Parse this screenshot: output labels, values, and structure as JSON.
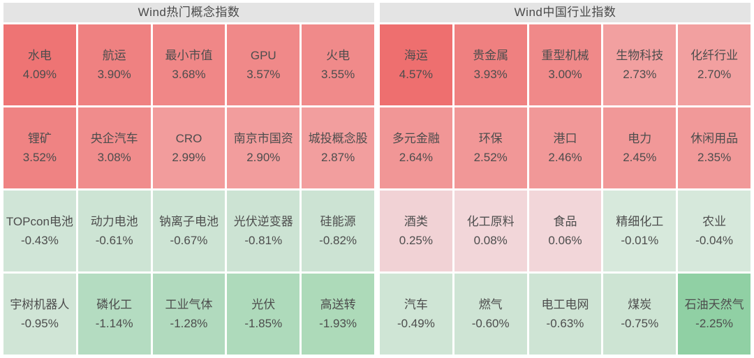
{
  "colors": {
    "header_bg": "#e4e4e4",
    "header_text": "#4a4a4a",
    "cell_text": "#4d4d4d",
    "positive_strong": "#ee6f6f",
    "positive_weak": "#f2d6d9",
    "negative_weak": "#d7e9dc",
    "negative_strong": "#90d0a4",
    "page_bg": "#ffffff"
  },
  "chart_data": [
    {
      "type": "heatmap",
      "title": "Wind热门概念指数",
      "columns": 5,
      "rows": 4,
      "value_unit": "%",
      "cells": [
        {
          "label": "水电",
          "change": "4.09%",
          "value": 4.09,
          "bg": "#ee7474"
        },
        {
          "label": "航运",
          "change": "3.90%",
          "value": 3.9,
          "bg": "#ef8181"
        },
        {
          "label": "最小市值",
          "change": "3.68%",
          "value": 3.68,
          "bg": "#f08787"
        },
        {
          "label": "GPU",
          "change": "3.57%",
          "value": 3.57,
          "bg": "#f08989"
        },
        {
          "label": "火电",
          "change": "3.55%",
          "value": 3.55,
          "bg": "#f08a8a"
        },
        {
          "label": "锂矿",
          "change": "3.52%",
          "value": 3.52,
          "bg": "#ef8383"
        },
        {
          "label": "央企汽车",
          "change": "3.08%",
          "value": 3.08,
          "bg": "#f08c8c"
        },
        {
          "label": "CRO",
          "change": "2.99%",
          "value": 2.99,
          "bg": "#f29c9c"
        },
        {
          "label": "南京市国资",
          "change": "2.90%",
          "value": 2.9,
          "bg": "#f29d9d"
        },
        {
          "label": "城投概念股",
          "change": "2.87%",
          "value": 2.87,
          "bg": "#f29e9e"
        },
        {
          "label": "TOPcon电池",
          "change": "-0.43%",
          "value": -0.43,
          "bg": "#d0e5d7"
        },
        {
          "label": "动力电池",
          "change": "-0.61%",
          "value": -0.61,
          "bg": "#cde4d4"
        },
        {
          "label": "钠离子电池",
          "change": "-0.67%",
          "value": -0.67,
          "bg": "#cde4d4"
        },
        {
          "label": "光伏逆变器",
          "change": "-0.81%",
          "value": -0.81,
          "bg": "#cce3d3"
        },
        {
          "label": "硅能源",
          "change": "-0.82%",
          "value": -0.82,
          "bg": "#cce3d3"
        },
        {
          "label": "宇树机器人",
          "change": "-0.95%",
          "value": -0.95,
          "bg": "#d0e5d6"
        },
        {
          "label": "磷化工",
          "change": "-1.14%",
          "value": -1.14,
          "bg": "#b4dcc1"
        },
        {
          "label": "工业气体",
          "change": "-1.28%",
          "value": -1.28,
          "bg": "#b1dabe"
        },
        {
          "label": "光伏",
          "change": "-1.85%",
          "value": -1.85,
          "bg": "#aedabb"
        },
        {
          "label": "高送转",
          "change": "-1.93%",
          "value": -1.93,
          "bg": "#addab9"
        }
      ]
    },
    {
      "type": "heatmap",
      "title": "Wind中国行业指数",
      "columns": 5,
      "rows": 4,
      "value_unit": "%",
      "cells": [
        {
          "label": "海运",
          "change": "4.57%",
          "value": 4.57,
          "bg": "#ee6f6f"
        },
        {
          "label": "贵金属",
          "change": "3.93%",
          "value": 3.93,
          "bg": "#ef8080"
        },
        {
          "label": "重型机械",
          "change": "3.00%",
          "value": 3.0,
          "bg": "#f08989"
        },
        {
          "label": "生物科技",
          "change": "2.73%",
          "value": 2.73,
          "bg": "#f2a0a0"
        },
        {
          "label": "化纤行业",
          "change": "2.70%",
          "value": 2.7,
          "bg": "#f2a0a0"
        },
        {
          "label": "多元金融",
          "change": "2.64%",
          "value": 2.64,
          "bg": "#f19696"
        },
        {
          "label": "环保",
          "change": "2.52%",
          "value": 2.52,
          "bg": "#f19797"
        },
        {
          "label": "港口",
          "change": "2.46%",
          "value": 2.46,
          "bg": "#f19898"
        },
        {
          "label": "电力",
          "change": "2.45%",
          "value": 2.45,
          "bg": "#f19898"
        },
        {
          "label": "休闲用品",
          "change": "2.35%",
          "value": 2.35,
          "bg": "#f19999"
        },
        {
          "label": "酒类",
          "change": "0.25%",
          "value": 0.25,
          "bg": "#f1d2d5"
        },
        {
          "label": "化工原料",
          "change": "0.08%",
          "value": 0.08,
          "bg": "#f2d6d9"
        },
        {
          "label": "食品",
          "change": "0.06%",
          "value": 0.06,
          "bg": "#f2d6d9"
        },
        {
          "label": "精细化工",
          "change": "-0.01%",
          "value": -0.01,
          "bg": "#d7e9dc"
        },
        {
          "label": "农业",
          "change": "-0.04%",
          "value": -0.04,
          "bg": "#d6e8db"
        },
        {
          "label": "汽车",
          "change": "-0.49%",
          "value": -0.49,
          "bg": "#cfe5d5"
        },
        {
          "label": "燃气",
          "change": "-0.60%",
          "value": -0.6,
          "bg": "#cee4d4"
        },
        {
          "label": "电工电网",
          "change": "-0.63%",
          "value": -0.63,
          "bg": "#cee4d4"
        },
        {
          "label": "煤炭",
          "change": "-0.75%",
          "value": -0.75,
          "bg": "#cde4d3"
        },
        {
          "label": "石油天然气",
          "change": "-2.25%",
          "value": -2.25,
          "bg": "#90d0a4"
        }
      ]
    }
  ]
}
